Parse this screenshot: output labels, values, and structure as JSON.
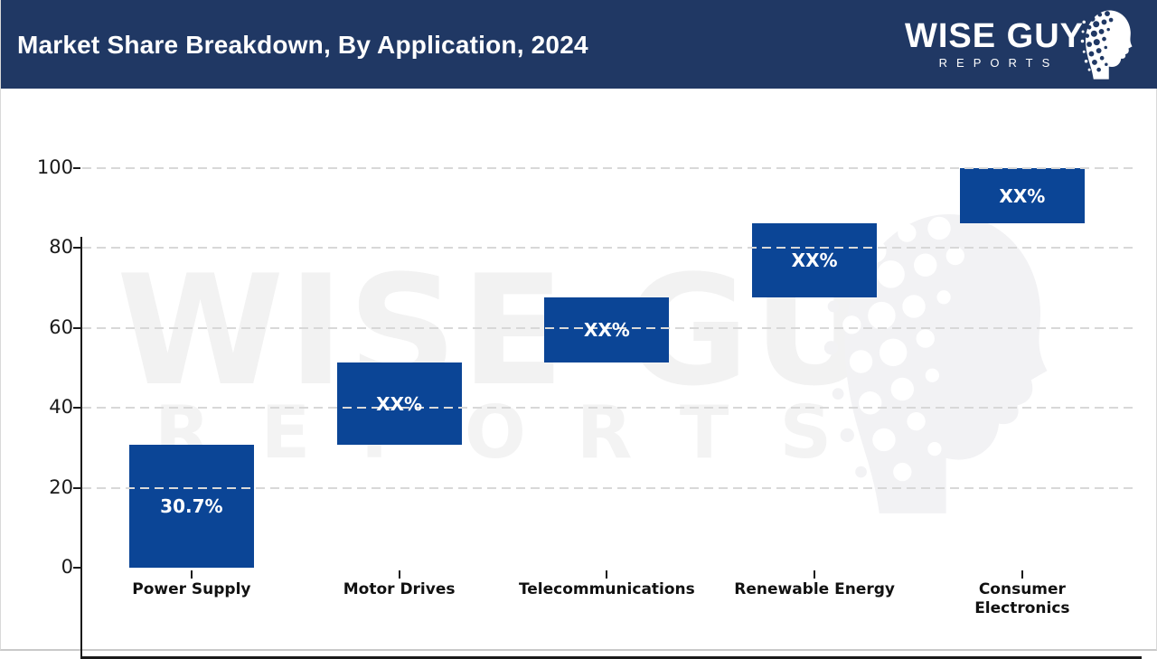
{
  "header": {
    "title": "Market Share Breakdown, By Application, 2024",
    "bg_color": "#203864",
    "logo": {
      "line1": "WISE GUY",
      "line2": "REPORTS",
      "icon": "dotted-head-icon"
    }
  },
  "watermark": {
    "line1": "WISE GUY",
    "line2": "REPORTS",
    "icon": "dotted-head-icon"
  },
  "chart_data": {
    "type": "bar",
    "subtype": "waterfall-range-bars",
    "title": "Market Share Breakdown, By Application, 2024",
    "categories": [
      "Power Supply",
      "Motor Drives",
      "Telecommunications",
      "Renewable Energy",
      "Consumer\nElectronics"
    ],
    "segments": [
      {
        "category": "Power Supply",
        "start": 0,
        "end": 30.7,
        "label": "30.7%"
      },
      {
        "category": "Motor Drives",
        "start": 30.7,
        "end": 51.4,
        "label": "XX%"
      },
      {
        "category": "Telecommunications",
        "start": 51.4,
        "end": 67.6,
        "label": "XX%"
      },
      {
        "category": "Renewable Energy",
        "start": 67.6,
        "end": 86.1,
        "label": "XX%"
      },
      {
        "category": "Consumer\nElectronics",
        "start": 86.1,
        "end": 100,
        "label": "XX%"
      }
    ],
    "xlabel": "",
    "ylabel": "",
    "y_axis": {
      "ticks": [
        0,
        20,
        40,
        60,
        80,
        100
      ],
      "range": [
        0,
        100
      ]
    },
    "grid": "dashed-horizontal",
    "legend": "none",
    "bar_color": "#0b4596",
    "bar_label_color": "#ffffff"
  }
}
